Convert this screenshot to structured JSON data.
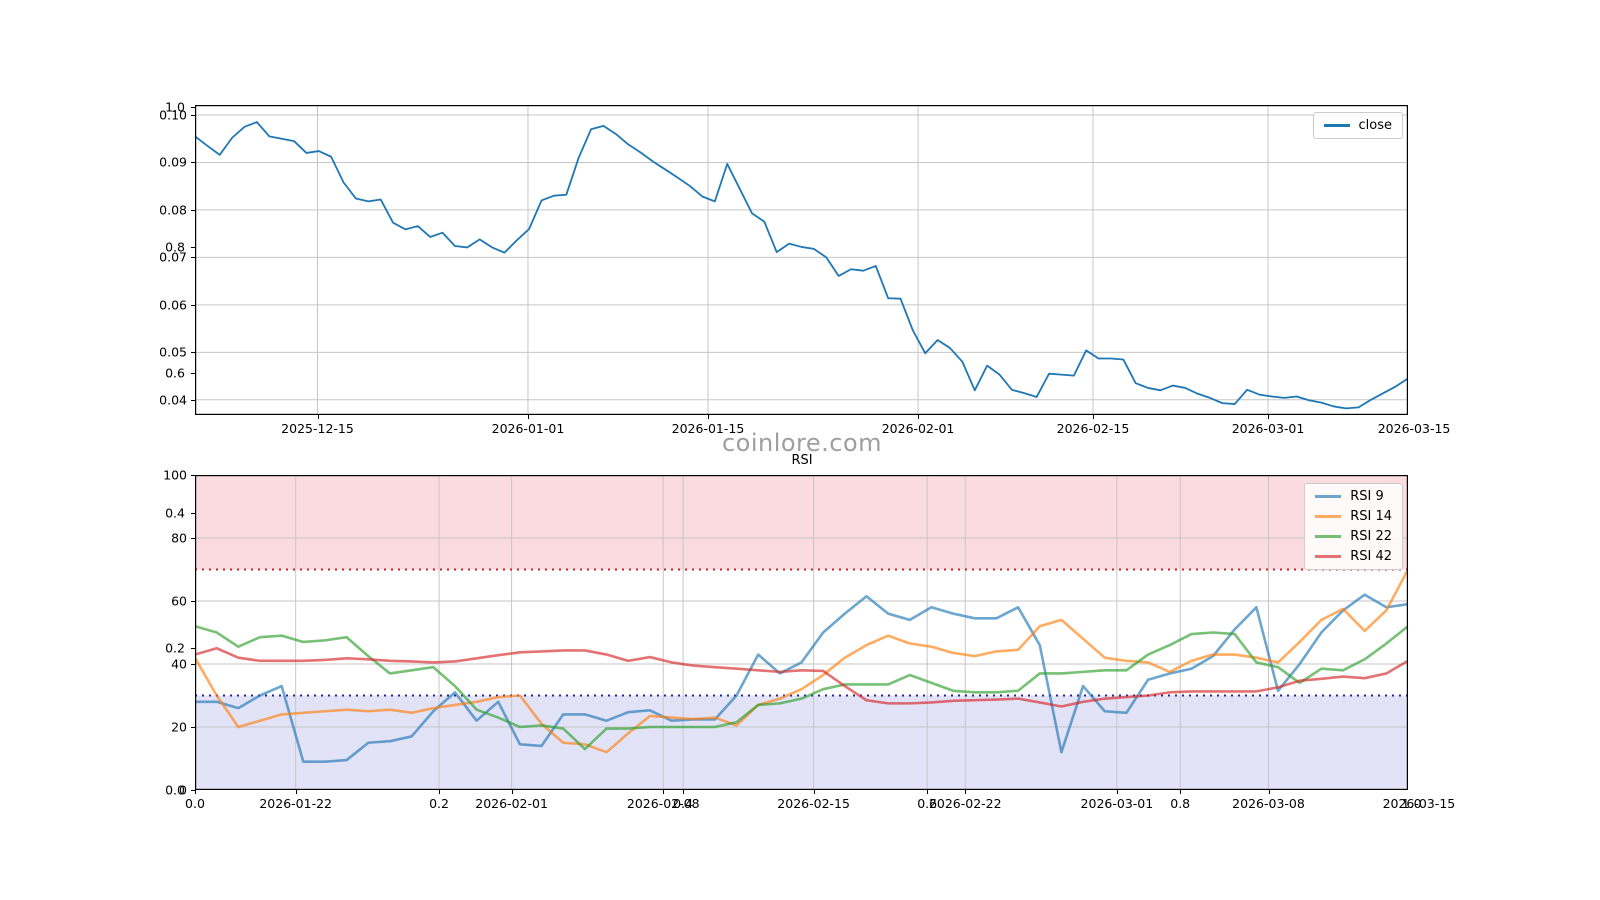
{
  "watermark": "coinlore.com",
  "colors": {
    "close_line": "#1f77b4",
    "rsi9": "#1f77b4",
    "rsi14": "#ff7f0e",
    "rsi22": "#2ca02c",
    "rsi42": "#d62728",
    "grid": "#c6c6c6",
    "spine": "#000000",
    "overbought_band": "#fbdbдf",
    "watermark_gray": "#8e8e8e"
  },
  "chart_data": [
    {
      "type": "line",
      "title": "",
      "legend": [
        {
          "label": "close",
          "color": "#1f77b4",
          "opacity": 1
        }
      ],
      "legend_position": "top-right",
      "x_ticks": [
        {
          "label": "2025-12-15",
          "f": 0.101
        },
        {
          "label": "2026-01-01",
          "f": 0.2745
        },
        {
          "label": "2026-01-15",
          "f": 0.4229
        },
        {
          "label": "2026-02-01",
          "f": 0.5961
        },
        {
          "label": "2026-02-15",
          "f": 0.7403
        },
        {
          "label": "2026-03-01",
          "f": 0.8846
        },
        {
          "label": "2026-03-15",
          "f": 1.005
        }
      ],
      "y_ticks": [
        {
          "label": "0.10",
          "v": 0.1
        },
        {
          "label": "0.09",
          "v": 0.09
        },
        {
          "label": "0.08",
          "v": 0.08
        },
        {
          "label": "0.07",
          "v": 0.07
        },
        {
          "label": "0.06",
          "v": 0.06
        },
        {
          "label": "0.05",
          "v": 0.05
        },
        {
          "label": "0.04",
          "v": 0.04
        }
      ],
      "y2_ticks": [
        {
          "label": "1.0",
          "f": 0.006
        },
        {
          "label": "0.8",
          "f": 0.458
        },
        {
          "label": "0.6",
          "f": 0.865
        }
      ],
      "ylim": [
        0.0368,
        0.1021
      ],
      "grid": true,
      "bands": [],
      "hlines": [],
      "series": [
        {
          "name": "close",
          "color": "#1f77b4",
          "width": 1.8,
          "opacity": 1,
          "values": [
            0.0955,
            0.0935,
            0.0916,
            0.0952,
            0.0975,
            0.0985,
            0.0955,
            0.095,
            0.0945,
            0.092,
            0.0924,
            0.0912,
            0.0858,
            0.0824,
            0.0818,
            0.0822,
            0.0773,
            0.0759,
            0.0766,
            0.0743,
            0.0752,
            0.0724,
            0.0721,
            0.0738,
            0.0721,
            0.071,
            0.0736,
            0.076,
            0.082,
            0.083,
            0.0832,
            0.091,
            0.097,
            0.0977,
            0.096,
            0.0938,
            0.0921,
            0.0902,
            0.0885,
            0.0868,
            0.085,
            0.0828,
            0.0818,
            0.0897,
            0.0845,
            0.0793,
            0.0775,
            0.0711,
            0.0729,
            0.0722,
            0.0718,
            0.07,
            0.0661,
            0.0675,
            0.0672,
            0.0682,
            0.0614,
            0.0613,
            0.0546,
            0.0498,
            0.0526,
            0.0509,
            0.048,
            0.042,
            0.0472,
            0.0453,
            0.0421,
            0.0414,
            0.0406,
            0.0455,
            0.0453,
            0.0451,
            0.0504,
            0.0487,
            0.0487,
            0.0485,
            0.0435,
            0.0425,
            0.042,
            0.043,
            0.0425,
            0.0413,
            0.0404,
            0.0393,
            0.0391,
            0.0421,
            0.0411,
            0.0407,
            0.0404,
            0.0407,
            0.0399,
            0.0394,
            0.0386,
            0.0382,
            0.0384,
            0.04,
            0.0414,
            0.0428,
            0.0445
          ]
        }
      ]
    },
    {
      "type": "line",
      "title": "RSI",
      "legend": [
        {
          "label": "RSI 9",
          "color": "#1f77b4",
          "opacity": 0.65
        },
        {
          "label": "RSI 14",
          "color": "#ff7f0e",
          "opacity": 0.65
        },
        {
          "label": "RSI 22",
          "color": "#2ca02c",
          "opacity": 0.65
        },
        {
          "label": "RSI 42",
          "color": "#d62728",
          "opacity": 0.65
        }
      ],
      "legend_position": "top-right",
      "x_ticks": [
        {
          "label": "0.0",
          "f": 0.0
        },
        {
          "label": "2026-01-22",
          "f": 0.083
        },
        {
          "label": "0.2",
          "f": 0.2012
        },
        {
          "label": "2026-02-01",
          "f": 0.261
        },
        {
          "label": "2026-02-08",
          "f": 0.386
        },
        {
          "label": "0.4",
          "f": 0.4024
        },
        {
          "label": "2026-02-15",
          "f": 0.51
        },
        {
          "label": "0.6",
          "f": 0.6036
        },
        {
          "label": "2026-02-22",
          "f": 0.635
        },
        {
          "label": "2026-03-01",
          "f": 0.76
        },
        {
          "label": "0.8",
          "f": 0.8122
        },
        {
          "label": "2026-03-08",
          "f": 0.885
        },
        {
          "label": "1.0",
          "f": 1.003
        },
        {
          "label": "2026-03-15",
          "f": 1.009
        }
      ],
      "y_ticks": [
        {
          "label": "100",
          "v": 100
        },
        {
          "label": "80",
          "v": 80
        },
        {
          "label": "60",
          "v": 60
        },
        {
          "label": "40",
          "v": 40
        },
        {
          "label": "20",
          "v": 20
        },
        {
          "label": "0",
          "v": 0
        }
      ],
      "y2_ticks": [
        {
          "label": "0.4",
          "f": 0.12
        },
        {
          "label": "0.2",
          "f": 0.549
        },
        {
          "label": "0.0",
          "f": 1.0
        }
      ],
      "ylim": [
        0,
        100
      ],
      "grid": true,
      "bands": [
        {
          "from": 70,
          "to": 100,
          "color": "#fbdbdf"
        },
        {
          "from": 0,
          "to": 30,
          "color": "#e3e3f8"
        }
      ],
      "hlines": [
        {
          "v": 70,
          "color": "#cc2222"
        },
        {
          "v": 30,
          "color": "#22229b"
        }
      ],
      "series": [
        {
          "name": "RSI 9",
          "color": "#1f77b4",
          "width": 2.6,
          "opacity": 0.65,
          "values": [
            28,
            28,
            26,
            30,
            33,
            9,
            9,
            9.5,
            15,
            15.5,
            17,
            25,
            31,
            22,
            28,
            14.5,
            14,
            24,
            24,
            22,
            24.7,
            25.3,
            22,
            22.4,
            22.4,
            30,
            43,
            37,
            40.5,
            50,
            56,
            61.5,
            56,
            54,
            58,
            56,
            54.5,
            54.5,
            58,
            46,
            12,
            33,
            25,
            24.5,
            35,
            37,
            38.5,
            42.5,
            51,
            58,
            31.5,
            40,
            50,
            57,
            62,
            58,
            59
          ]
        },
        {
          "name": "RSI 14",
          "color": "#ff7f0e",
          "width": 2.6,
          "opacity": 0.65,
          "values": [
            42,
            30,
            20,
            22,
            24,
            24.5,
            25,
            25.5,
            25,
            25.5,
            24.5,
            26,
            27,
            28,
            29.5,
            30,
            21,
            15,
            14.5,
            12,
            18,
            23.5,
            23,
            22.5,
            23,
            20.5,
            27,
            29,
            32,
            36.5,
            42,
            46,
            49,
            46.5,
            45.5,
            43.5,
            42.5,
            44,
            44.5,
            52,
            54,
            48,
            42,
            41,
            40.5,
            37.5,
            41,
            43,
            43,
            42,
            40.5,
            47,
            54,
            57.5,
            50.5,
            57,
            70
          ]
        },
        {
          "name": "RSI 22",
          "color": "#2ca02c",
          "width": 2.6,
          "opacity": 0.65,
          "values": [
            52,
            50,
            45.5,
            48.5,
            49,
            47,
            47.5,
            48.5,
            42.5,
            37,
            38,
            39,
            33,
            25.5,
            23,
            20,
            20.5,
            19.5,
            13,
            19.5,
            19.5,
            20,
            20,
            20,
            20,
            21.5,
            27,
            27.5,
            29,
            32,
            33.5,
            33.5,
            33.5,
            36.5,
            34,
            31.5,
            31,
            31,
            31.5,
            37,
            37,
            37.5,
            38,
            38,
            43,
            46,
            49.5,
            50,
            49.5,
            40.5,
            39,
            34,
            38.5,
            38,
            41.5,
            46.5,
            52
          ]
        },
        {
          "name": "RSI 42",
          "color": "#d62728",
          "width": 2.6,
          "opacity": 0.65,
          "values": [
            43,
            45,
            42,
            41,
            41,
            41,
            41.3,
            41.8,
            41.5,
            41,
            40.8,
            40.5,
            40.8,
            41.8,
            42.8,
            43.7,
            44,
            44.3,
            44.3,
            43,
            41,
            42.2,
            40.5,
            39.5,
            39,
            38.5,
            38,
            37.5,
            38,
            37.8,
            33,
            28.5,
            27.5,
            27.5,
            27.8,
            28.3,
            28.5,
            28.7,
            29,
            27.8,
            26.5,
            28,
            29,
            29.5,
            30,
            31,
            31.3,
            31.3,
            31.3,
            31.3,
            32.6,
            34.7,
            35.3,
            36,
            35.5,
            37,
            41
          ]
        }
      ]
    }
  ]
}
